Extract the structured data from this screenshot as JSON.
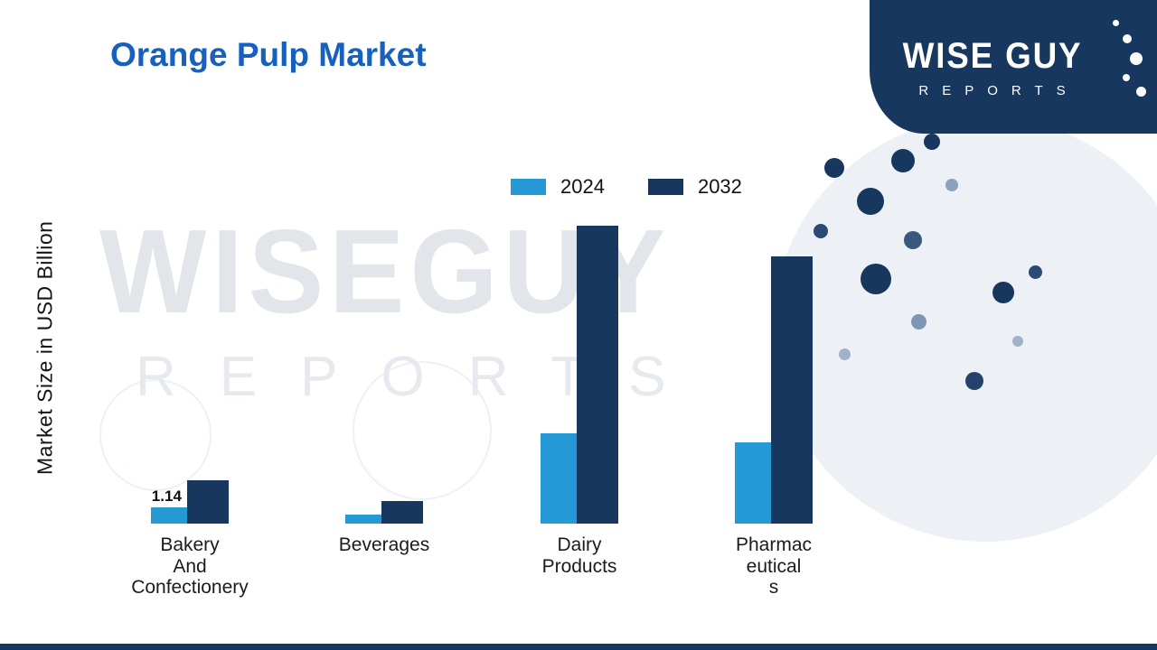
{
  "page": {
    "title": "Orange Pulp Market",
    "y_axis_label": "Market Size in USD Billion",
    "watermark": {
      "line1": "WISEGUY",
      "line2": "REPORTS"
    },
    "logo": {
      "line1": "WISE GUY",
      "line2": "REPORTS"
    }
  },
  "colors": {
    "title_blue": "#1760bd",
    "navy": "#17375e",
    "bar_2024": "#2499d6",
    "bar_2032": "#17375e",
    "watermark_gray": "#e2e6eb"
  },
  "legend": [
    {
      "label": "2024",
      "color": "#2499d6"
    },
    {
      "label": "2032",
      "color": "#17375e"
    }
  ],
  "chart_data": {
    "type": "bar",
    "title": "Orange Pulp Market",
    "xlabel": "",
    "ylabel": "Market Size in USD Billion",
    "categories": [
      "Bakery And Confectionery",
      "Beverages",
      "Dairy Products",
      "Pharmaceuticals"
    ],
    "category_display_lines": [
      [
        "Bakery",
        "And",
        "Confectionery"
      ],
      [
        "Beverages"
      ],
      [
        "Dairy",
        "Products"
      ],
      [
        "Pharmac",
        "eutical",
        "s"
      ]
    ],
    "series": [
      {
        "name": "2024",
        "color": "#2499d6",
        "values": [
          1.14,
          0.62,
          6.2,
          5.6
        ]
      },
      {
        "name": "2032",
        "color": "#17375e",
        "values": [
          3.0,
          1.55,
          20.5,
          18.4
        ]
      }
    ],
    "data_labels": [
      {
        "series": "2024",
        "category": "Bakery And Confectionery",
        "text": "1.14"
      }
    ],
    "ylim": [
      0,
      21
    ],
    "grid": false,
    "legend_position": "top"
  }
}
